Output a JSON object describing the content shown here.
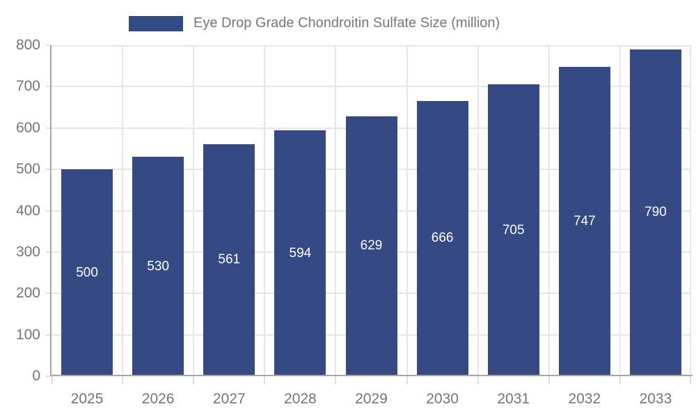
{
  "chart_data": {
    "type": "bar",
    "title": "Eye Drop Grade Chondroitin Sulfate Size (million)",
    "legend": [
      "Eye Drop Grade Chondroitin Sulfate Size (million)"
    ],
    "legend_position": "top",
    "categories": [
      "2025",
      "2026",
      "2027",
      "2028",
      "2029",
      "2030",
      "2031",
      "2032",
      "2033"
    ],
    "values": [
      500,
      530,
      561,
      594,
      629,
      666,
      705,
      747,
      790
    ],
    "value_labels_shown": true,
    "xlabel": "",
    "ylabel": "",
    "ylim": [
      0,
      800
    ],
    "yticks": [
      0,
      100,
      200,
      300,
      400,
      500,
      600,
      700,
      800
    ],
    "grid": true
  },
  "colors": {
    "bar": "#354A84",
    "axis_line": "#A6A6A6",
    "grid_line": "#E5E5E5",
    "tick_mark": "#DFDFDF",
    "axis_text": "#757575",
    "legend_text": "#777777",
    "value_label_text": "#FFFFFF",
    "background": "#FFFFFF"
  }
}
